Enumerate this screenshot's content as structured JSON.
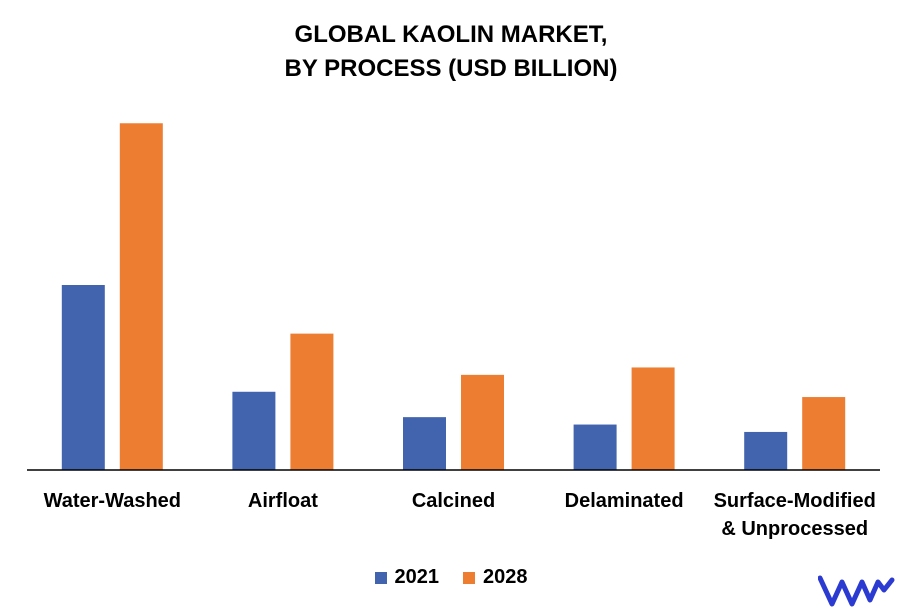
{
  "chart_data": {
    "type": "bar",
    "title": "GLOBAL KAOLIN MARKET,",
    "subtitle": "BY PROCESS (USD BILLION)",
    "xlabel": "",
    "ylabel": "",
    "categories": [
      "Water-Washed",
      "Airfloat",
      "Calcined",
      "Delaminated",
      "Surface-Modified\n& Unprocessed"
    ],
    "series": [
      {
        "name": "2021",
        "color": "#4263AE",
        "values": [
          1.75,
          0.74,
          0.5,
          0.43,
          0.36
        ]
      },
      {
        "name": "2028",
        "color": "#ED7D31",
        "values": [
          3.28,
          1.29,
          0.9,
          0.97,
          0.69
        ]
      }
    ],
    "ylim": [
      0,
      3.5
    ],
    "grid": false,
    "legend_position": "bottom"
  },
  "logo": {
    "name": "vmr-logo",
    "color": "#2B3BD1"
  }
}
